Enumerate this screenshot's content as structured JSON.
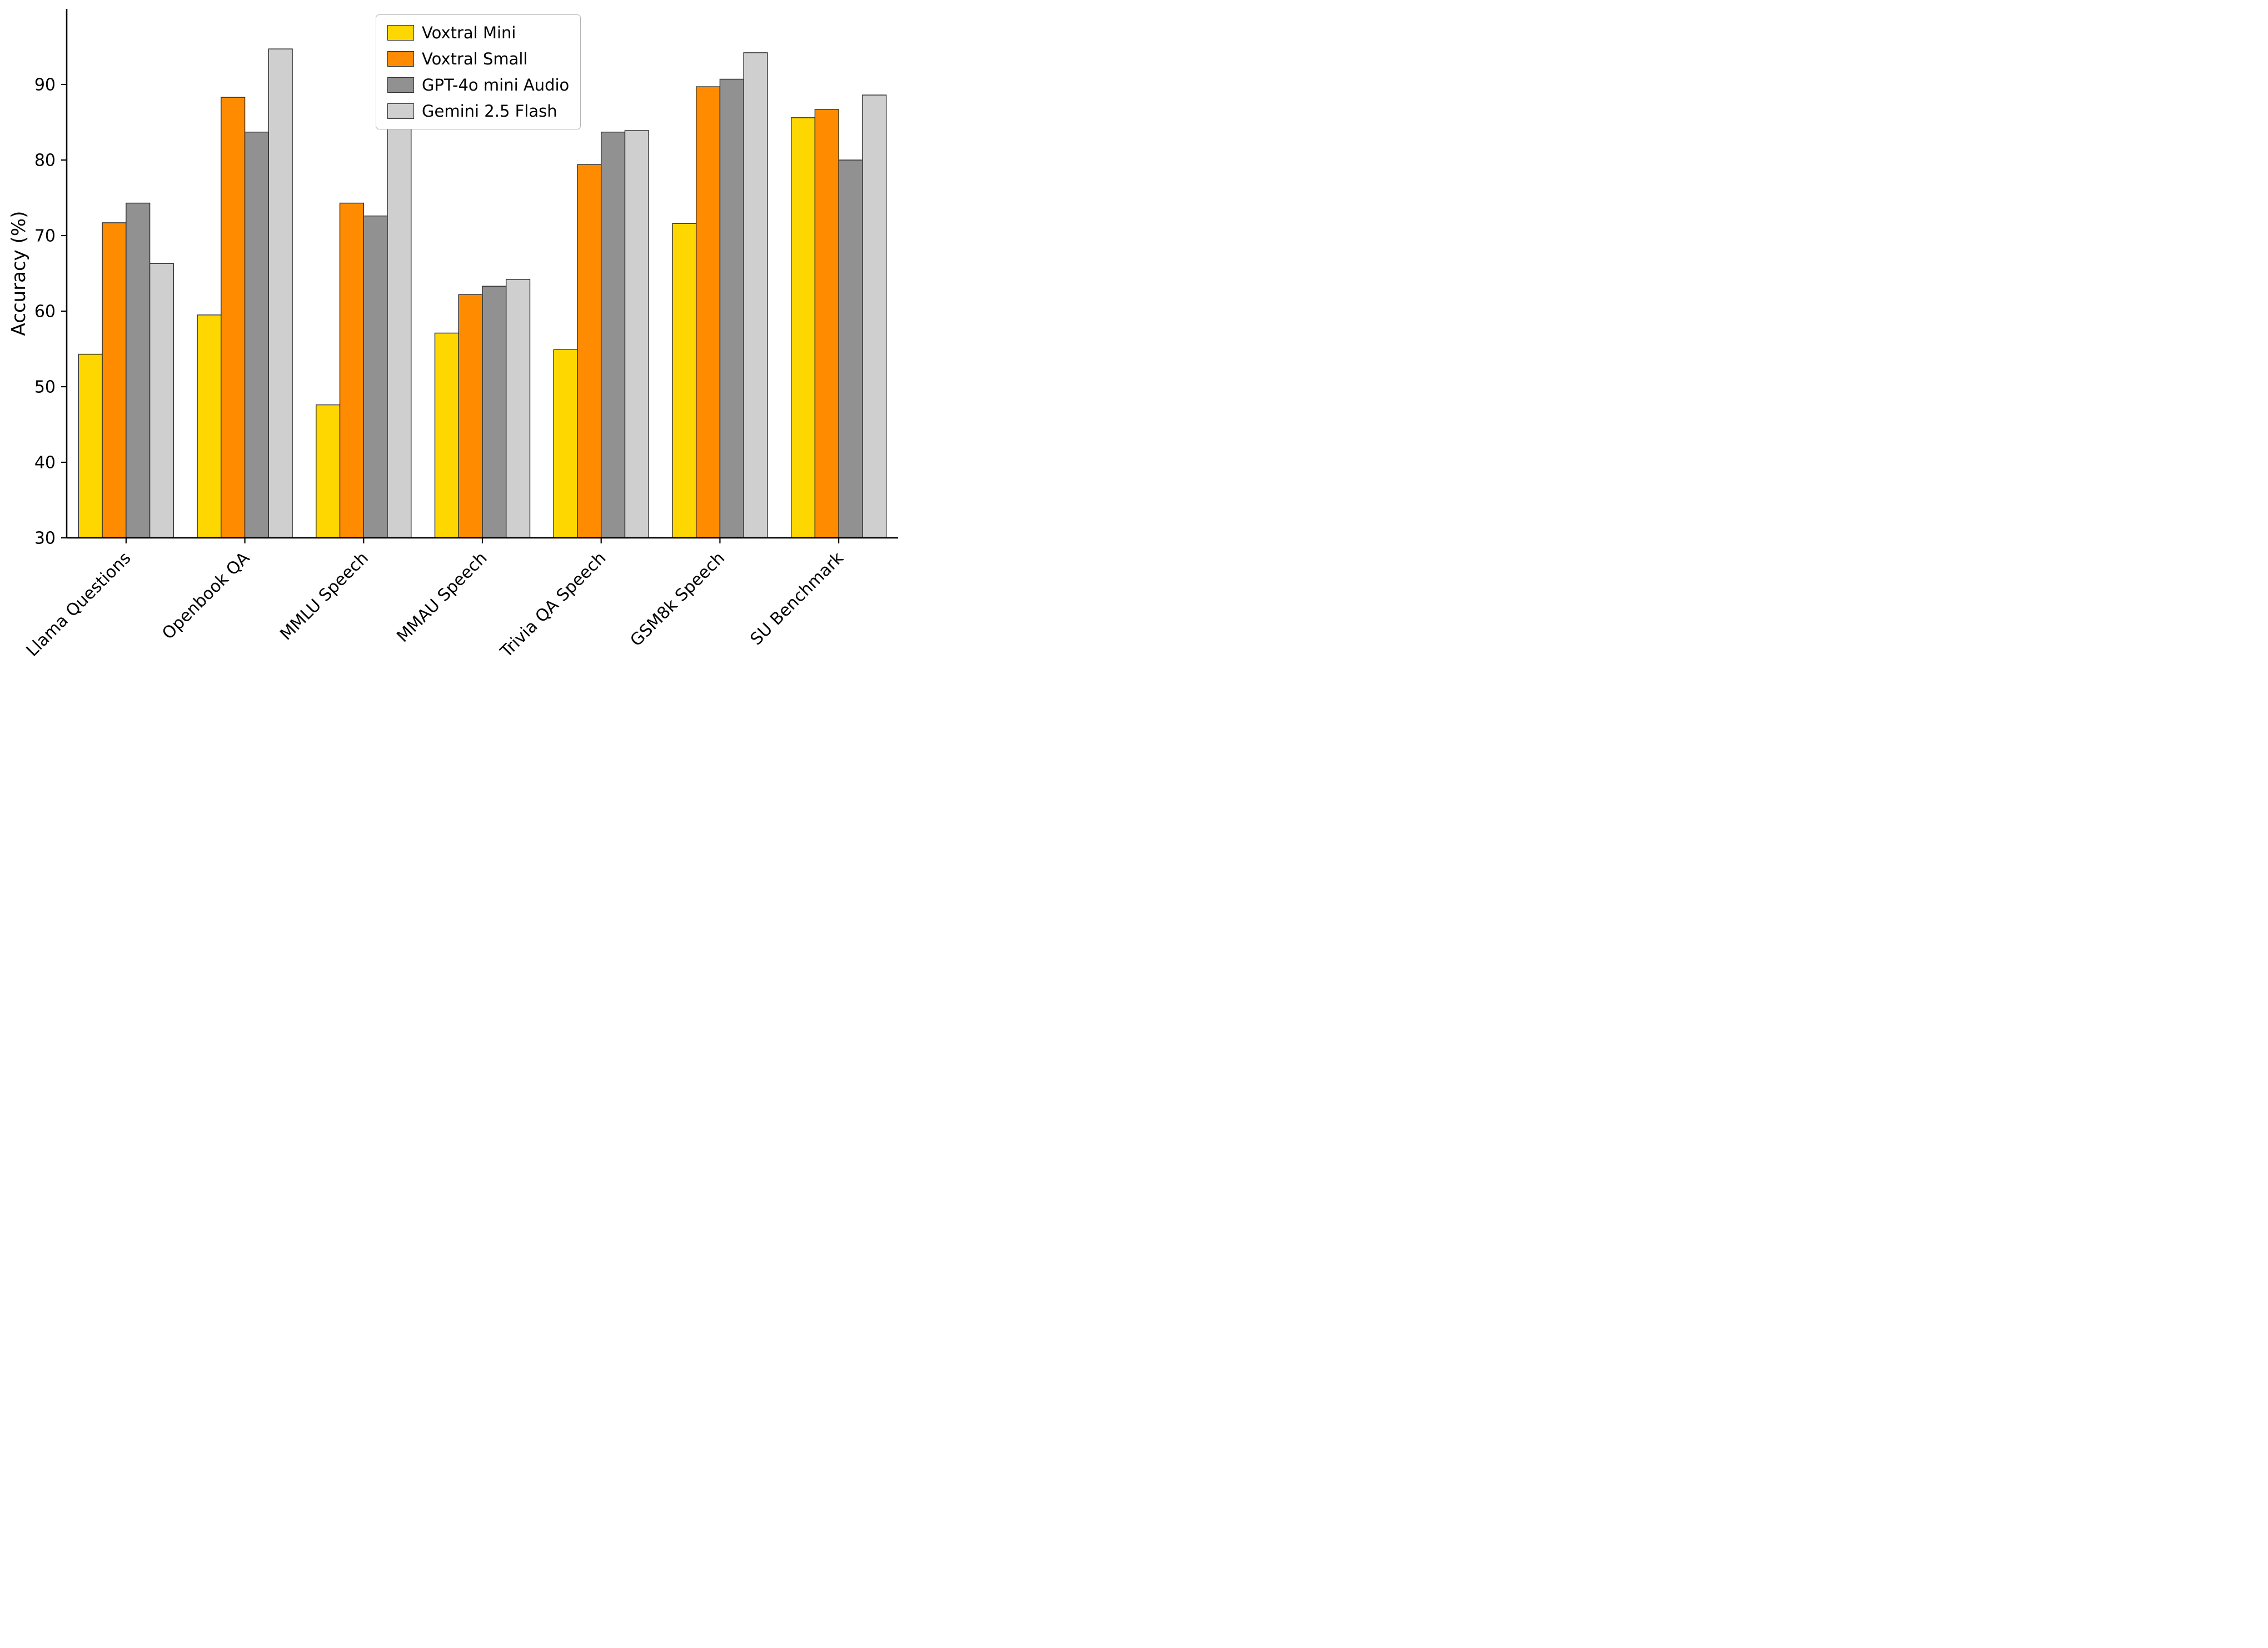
{
  "chart_data": {
    "type": "bar",
    "title": "",
    "xlabel": "",
    "ylabel": "Accuracy (%)",
    "ylim": [
      30,
      100
    ],
    "yticks": [
      30,
      40,
      50,
      60,
      70,
      80,
      90
    ],
    "grid": false,
    "legend_position": "upper center",
    "bar_edge_color": "#2b2b2b",
    "categories": [
      "Llama Questions",
      "Openbook QA",
      "MMLU Speech",
      "MMAU Speech",
      "Trivia QA Speech",
      "GSM8k Speech",
      "SU Benchmark"
    ],
    "series": [
      {
        "name": "Voxtral Mini",
        "color": "#FFD700",
        "values": [
          54.3,
          59.5,
          47.6,
          57.1,
          54.9,
          71.6,
          85.6
        ]
      },
      {
        "name": "Voxtral Small",
        "color": "#FF8C00",
        "values": [
          71.7,
          88.3,
          74.3,
          62.2,
          79.4,
          89.7,
          86.7
        ]
      },
      {
        "name": "GPT-4o mini Audio",
        "color": "#919191",
        "values": [
          74.3,
          83.7,
          72.6,
          63.3,
          83.7,
          90.7,
          80.0
        ]
      },
      {
        "name": "Gemini 2.5 Flash",
        "color": "#CFCFCF",
        "values": [
          66.3,
          94.7,
          84.6,
          64.2,
          83.9,
          94.2,
          88.6
        ]
      }
    ]
  }
}
